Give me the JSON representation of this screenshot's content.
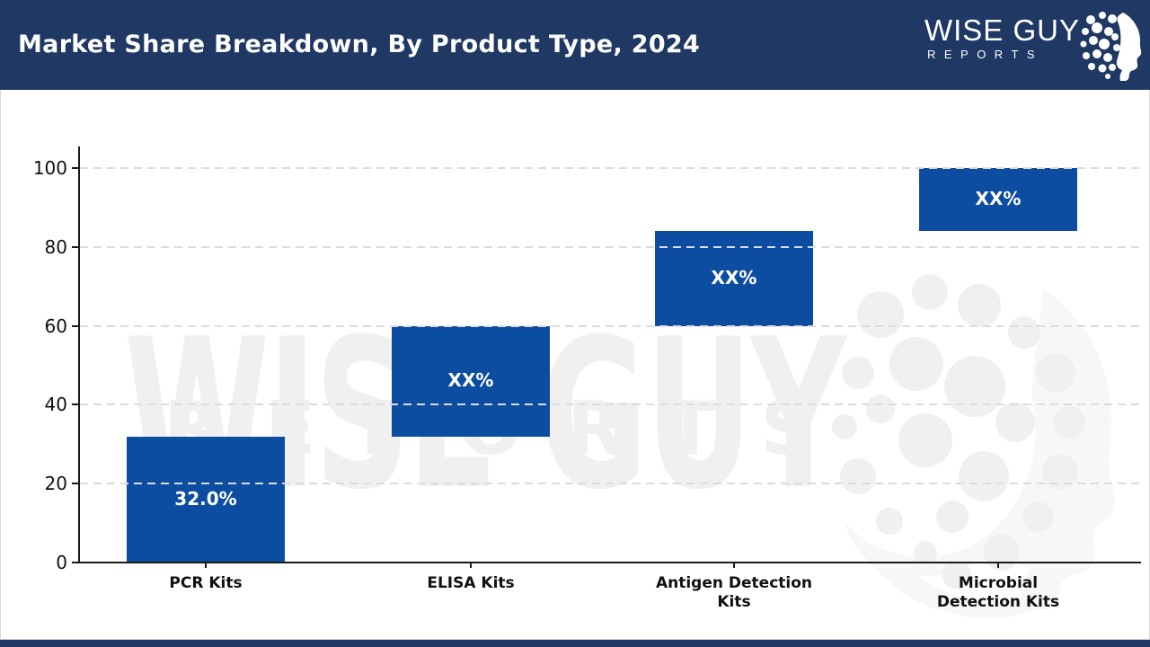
{
  "header": {
    "title": "Market Share Breakdown, By Product Type, 2024",
    "logo": {
      "brand_top": "WISE GUY",
      "brand_bottom": "REPORTS"
    }
  },
  "watermark": {
    "line1": "WISE GUY",
    "line2": "REPORTS"
  },
  "footer": {},
  "chart_data": {
    "type": "bar",
    "subtype": "waterfall",
    "title": "Market Share Breakdown, By Product Type, 2024",
    "categories": [
      "PCR Kits",
      "ELISA Kits",
      "Antigen Detection\nKits",
      "Microbial\nDetection Kits"
    ],
    "segments": [
      {
        "category": "PCR Kits",
        "start": 0,
        "end": 32,
        "size": 32,
        "label": "32.0%"
      },
      {
        "category": "ELISA Kits",
        "start": 32,
        "end": 60,
        "size": 28,
        "label": "XX%"
      },
      {
        "category": "Antigen Detection Kits",
        "start": 60,
        "end": 84,
        "size": 24,
        "label": "XX%"
      },
      {
        "category": "Microbial Detection Kits",
        "start": 84,
        "end": 100,
        "size": 16,
        "label": "XX%"
      }
    ],
    "yticks": [
      0,
      20,
      40,
      60,
      80,
      100
    ],
    "ylim": [
      0,
      105.5
    ],
    "xlabel": "",
    "ylabel": "",
    "grid": "horizontal-dashed",
    "legend": "none",
    "colors": {
      "bar": "#0d4da1",
      "bar_label": "#ffffff",
      "gridline": "#dcdcdc",
      "axis": "#1a1a1a",
      "header_bg": "#1f3864",
      "footer_bg": "#1f3864",
      "title_text": "#ffffff",
      "watermark": "#f0f0f0"
    }
  }
}
